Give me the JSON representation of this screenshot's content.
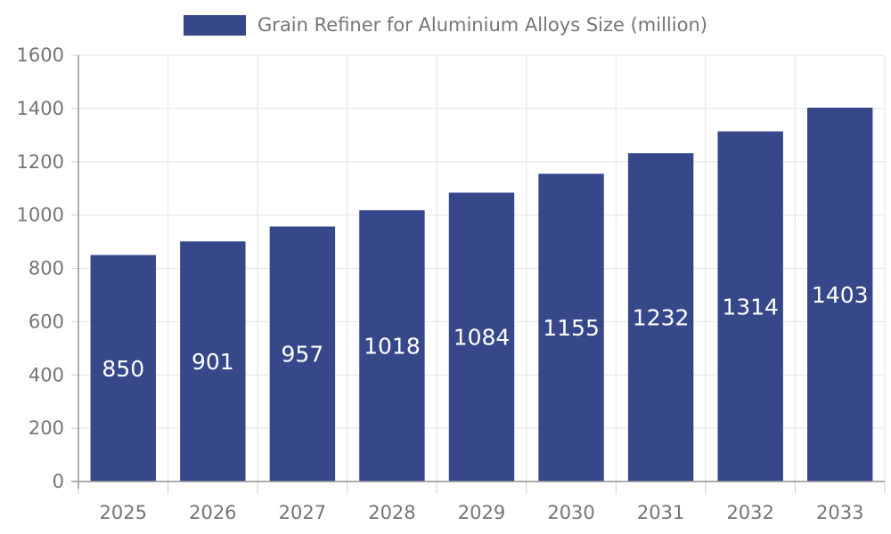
{
  "legend": {
    "label": "Grain Refiner for Aluminium Alloys Size (million)"
  },
  "colors": {
    "bar": "#36488a",
    "grid": "#e4e4e4",
    "tick": "#d0d0d0",
    "axis": "#949494",
    "text": "#757575",
    "bar_label": "#ffffff",
    "background": "#ffffff"
  },
  "chart_data": {
    "type": "bar",
    "title": "Grain Refiner for Aluminium Alloys Size (million)",
    "series_name": "Grain Refiner for Aluminium Alloys Size (million)",
    "categories": [
      "2025",
      "2026",
      "2027",
      "2028",
      "2029",
      "2030",
      "2031",
      "2032",
      "2033"
    ],
    "values": [
      850,
      901,
      957,
      1018,
      1084,
      1155,
      1232,
      1314,
      1403
    ],
    "xlabel": "",
    "ylabel": "",
    "ylim": [
      0,
      1600
    ],
    "yticks": [
      0,
      200,
      400,
      600,
      800,
      1000,
      1200,
      1400,
      1600
    ],
    "grid": true,
    "legend_position": "top",
    "bar_label_position": "inside-center"
  }
}
